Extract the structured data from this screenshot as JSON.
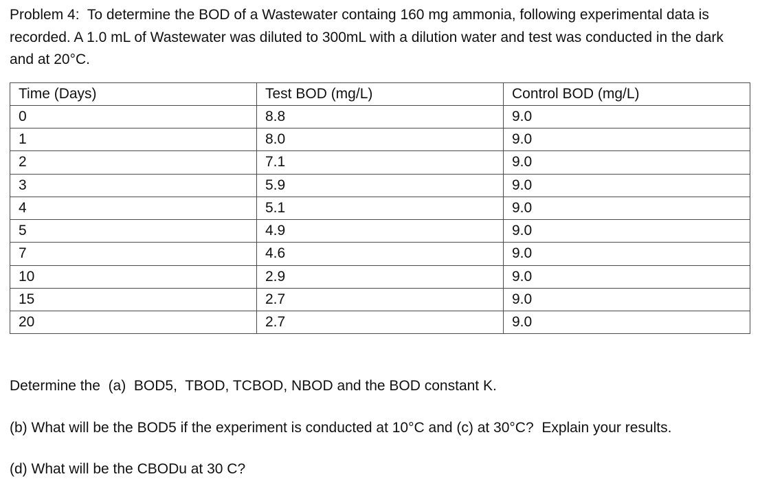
{
  "intro": "Problem 4:  To determine the BOD of a Wastewater containg 160 mg ammonia, following experimental data is recorded. A 1.0 mL of Wastewater was diluted to 300mL with a dilution water and test was conducted in the dark and at 20°C.",
  "table": {
    "columns": [
      "Time (Days)",
      "Test BOD (mg/L)",
      "Control BOD (mg/L)"
    ],
    "rows": [
      [
        "0",
        "8.8",
        "9.0"
      ],
      [
        "1",
        "8.0",
        "9.0"
      ],
      [
        "2",
        "7.1",
        "9.0"
      ],
      [
        "3",
        "5.9",
        "9.0"
      ],
      [
        "4",
        "5.1",
        "9.0"
      ],
      [
        "5",
        "4.9",
        "9.0"
      ],
      [
        "7",
        "4.6",
        "9.0"
      ],
      [
        "10",
        "2.9",
        "9.0"
      ],
      [
        "15",
        "2.7",
        "9.0"
      ],
      [
        "20",
        "2.7",
        "9.0"
      ]
    ]
  },
  "questions": {
    "a": "Determine the  (a)  BOD5,  TBOD, TCBOD, NBOD and the BOD constant K.",
    "bc": "(b) What will be the BOD5 if the experiment is conducted at 10°C and (c) at 30°C?  Explain your results.",
    "d": "(d) What will be the CBODu at 30 C?"
  }
}
